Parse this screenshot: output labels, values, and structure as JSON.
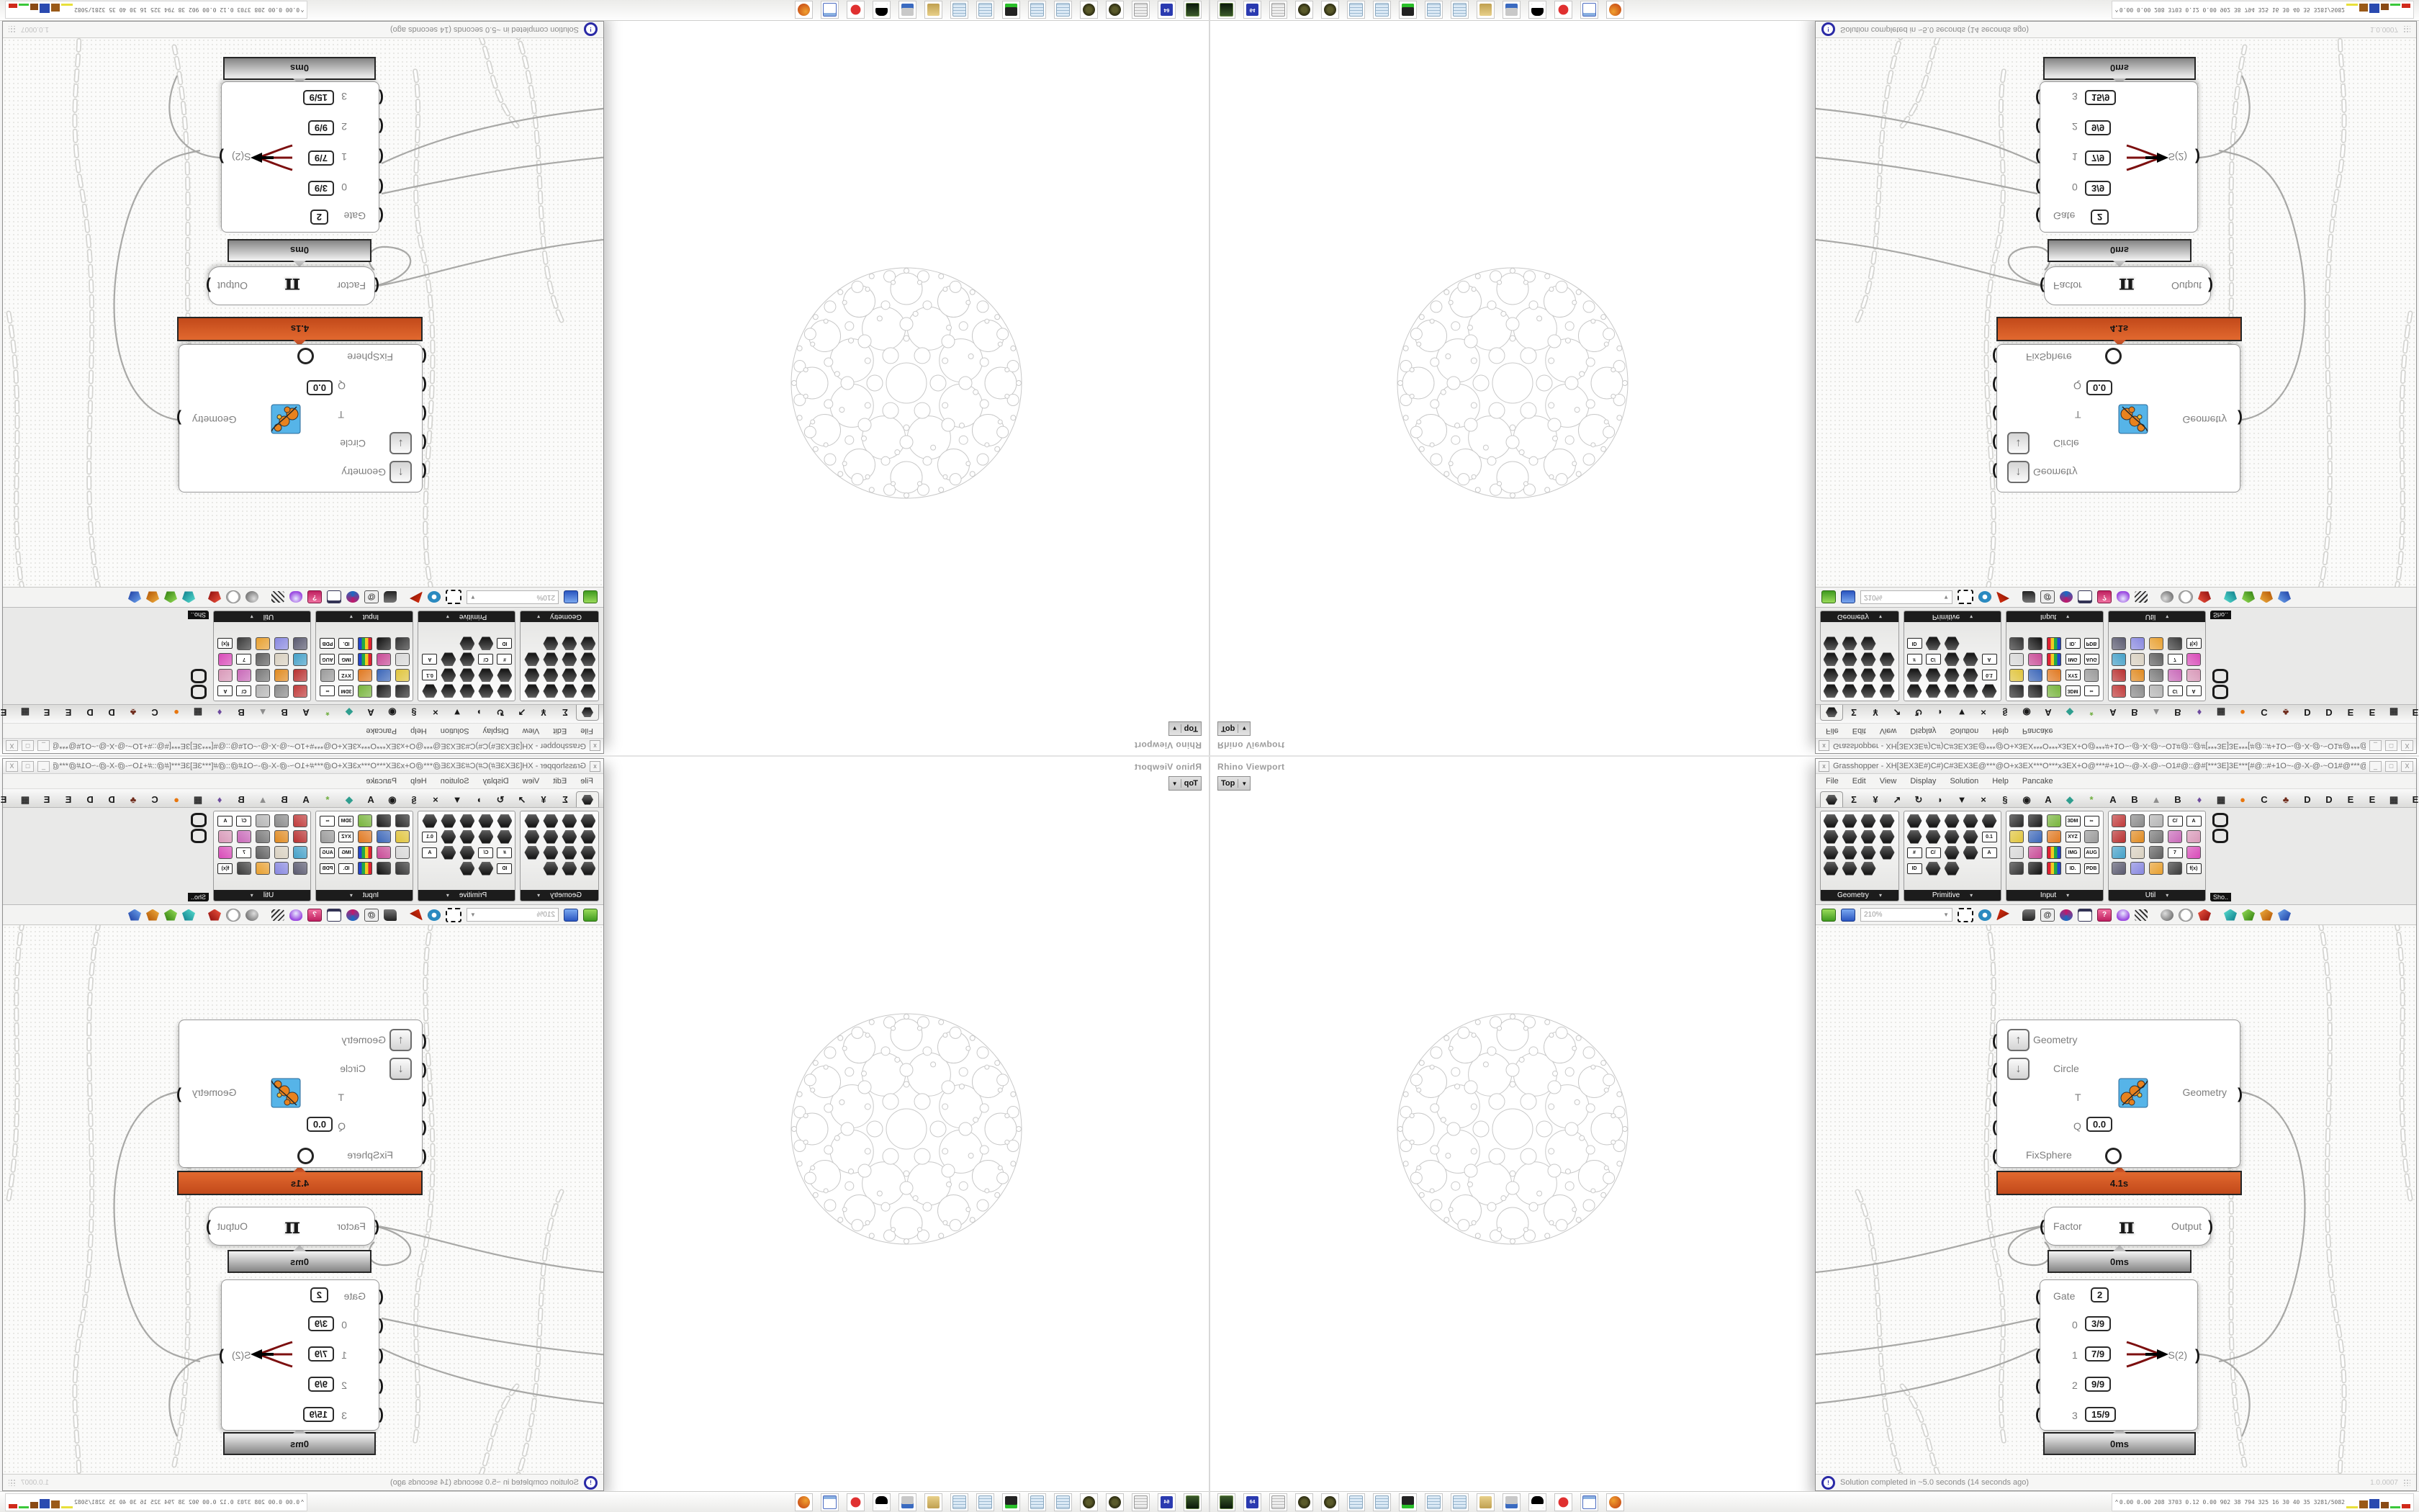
{
  "app": {
    "title": "Grasshopper - XH[3EX3E#)C#)C#3EX3E@***@O+x3EX***O***x3EX+O@***#+1O~-@-X-@-~O1#@::@#[***3E]3E***[#@::#+1O~-@-X-@-~O1#@***@O+x3EX***O***O***...",
    "close_left_label": "x",
    "minimize_label": "_",
    "maximize_label": "□",
    "close_label": "X"
  },
  "menu": {
    "items": [
      "File",
      "Edit",
      "View",
      "Display",
      "Solution",
      "Help",
      "Pancake"
    ]
  },
  "tabs": {
    "standard": [
      {
        "name": "tab-params-hexagon",
        "glyph": "HEX",
        "color": "#111111"
      },
      {
        "name": "tab-maths",
        "glyph": "Σ",
        "color": "#1a1a1a"
      },
      {
        "name": "tab-sets",
        "glyph": "¥",
        "color": "#1a1a1a"
      },
      {
        "name": "tab-vector",
        "glyph": "↗",
        "color": "#1a1a1a"
      },
      {
        "name": "tab-curve",
        "glyph": "↻",
        "color": "#1a1a1a"
      },
      {
        "name": "tab-surface",
        "glyph": "◗",
        "color": "#1a1a1a"
      },
      {
        "name": "tab-mesh",
        "glyph": "▼",
        "color": "#1a1a1a"
      },
      {
        "name": "tab-intersect",
        "glyph": "×",
        "color": "#1a1a1a"
      },
      {
        "name": "tab-transform",
        "glyph": "§",
        "color": "#1a1a1a"
      },
      {
        "name": "tab-display",
        "glyph": "◉",
        "color": "#1a1a1a"
      }
    ],
    "plugin": [
      {
        "label": "A",
        "color": "#1a1a1a"
      },
      {
        "label": "◆",
        "color": "#2f9e8f"
      },
      {
        "label": "*",
        "color": "#6fae3e"
      },
      {
        "label": "A",
        "color": "#1a1a1a"
      },
      {
        "label": "B",
        "color": "#1a1a1a"
      },
      {
        "label": "▲",
        "color": "#8d8d8d"
      },
      {
        "label": "B",
        "color": "#1a1a1a"
      },
      {
        "label": "♦",
        "color": "#6d4a9e"
      },
      {
        "label": "▦",
        "color": "#2a2a2a"
      },
      {
        "label": "●",
        "color": "#e8760e"
      },
      {
        "label": "C",
        "color": "#1a1a1a"
      },
      {
        "label": "♣",
        "color": "#6e2a1a"
      },
      {
        "label": "D",
        "color": "#1a1a1a"
      },
      {
        "label": "D",
        "color": "#1a1a1a"
      },
      {
        "label": "E",
        "color": "#1a1a1a"
      },
      {
        "label": "E",
        "color": "#1a1a1a"
      },
      {
        "label": "▦",
        "color": "#2a2a2a"
      },
      {
        "label": "E",
        "color": "#1a1a1a"
      }
    ]
  },
  "palette": {
    "sections": [
      {
        "label": "Geometry",
        "cols": 4,
        "cells": [
          "hex",
          "hex",
          "hex",
          "hex",
          "hex",
          "hex",
          "hex",
          "hex",
          "hex",
          "hex",
          "hex",
          "hex",
          "hex",
          "hex",
          "hex"
        ]
      },
      {
        "label": "Primitive",
        "cols": 5,
        "cells": [
          "hex",
          "hex",
          "hex",
          "hex",
          "hex",
          "hex",
          "hex",
          "hex",
          "hex",
          "tag:0.1",
          "tag:#",
          "tag:C/",
          "hex",
          "hex",
          "tag:A",
          "tag:ID",
          "hex",
          "hex"
        ]
      },
      {
        "label": "Input",
        "cols": 5,
        "cells": [
          "sq:#2b2b2b",
          "sq:#1e1e1e",
          "sq:#77b43c",
          "tag:3DM",
          "tag:∞",
          "sq:#e0c43c",
          "sq:#3b66b8",
          "sq:#e07820",
          "tag:XYZ",
          "sq:#9a9a9a",
          "sq:#d8d8d8",
          "sq:#c84a96",
          "rainbow",
          "tag:IMG",
          "tag:AUG",
          "sq:#333333",
          "sq:#111111",
          "rainbow",
          "tag:ID.",
          "tag:PDB"
        ]
      },
      {
        "label": "Util",
        "cols": 5,
        "cells": [
          "sq:#c03a3a",
          "sq:#8a8a8a",
          "sq:#b5b5b5",
          "tag:C/",
          "tag:A",
          "sq:#b83030",
          "sq:#e08a20",
          "sq:#787878",
          "sq:#c869b8",
          "sq:#d898b8",
          "sq:#44a0c8",
          "sq:#d8d0c0",
          "sq:#606060",
          "tag:7",
          "sq:#d84ab8",
          "sq:#5a5a70",
          "sq:#8888e0",
          "sq:#e8a030",
          "sq:#3a3a3a",
          "tag:f(x)"
        ]
      }
    ],
    "show_section_label": "Sho.."
  },
  "canvas_toolbar": {
    "zoom_value": "210%",
    "icons": [
      "open-file",
      "save-file",
      "zoom-extents",
      "preview-eye",
      "sketch-pen",
      "bake-slab",
      "annotate-at",
      "gha-loader",
      "finder-window",
      "help-box",
      "idea-bulb",
      "wire-style",
      "cluster-sphere",
      "wire-sphere",
      "gem-red",
      "gem-teal",
      "gem-green",
      "gem-orange",
      "gem-blue"
    ]
  },
  "viewport": {
    "label": "Rhino Viewport",
    "view_button": "Top"
  },
  "components": {
    "fractal": {
      "inputs": [
        "Geometry",
        "Circle",
        "T",
        "Q",
        "FixSphere"
      ],
      "q_value": "0.0",
      "output": "Geometry",
      "profiler": "4.1s"
    },
    "factor": {
      "input": "Factor",
      "symbol": "π",
      "output": "Output",
      "profiler": "0ms"
    },
    "gate": {
      "gate_label": "Gate",
      "gate_value": "2",
      "rows": [
        {
          "index": "0",
          "value": "3/9"
        },
        {
          "index": "1",
          "value": "7/9"
        },
        {
          "index": "2",
          "value": "9/9"
        },
        {
          "index": "3",
          "value": "15/9"
        }
      ],
      "output_label": "S(2)",
      "profiler": "0ms"
    }
  },
  "statusbar": {
    "message": "Solution completed in ~5.0 seconds (14 seconds ago)",
    "version": "1.0.0007"
  },
  "taskbar": {
    "launchers": [
      "terminal",
      "floppy-64",
      "scroll",
      "wheel",
      "wheel",
      "notepad",
      "notepad",
      "workstation",
      "notepad",
      "notepad",
      "folder",
      "computer",
      "ghost",
      "seal",
      "calculator",
      "browser"
    ],
    "floppy_label": "64",
    "monitor": {
      "prefix": "^",
      "text": "0.00 0.00 208 3703 0.12 0.00 902 38 794 325 16 30 40 35 3281/5082"
    }
  }
}
